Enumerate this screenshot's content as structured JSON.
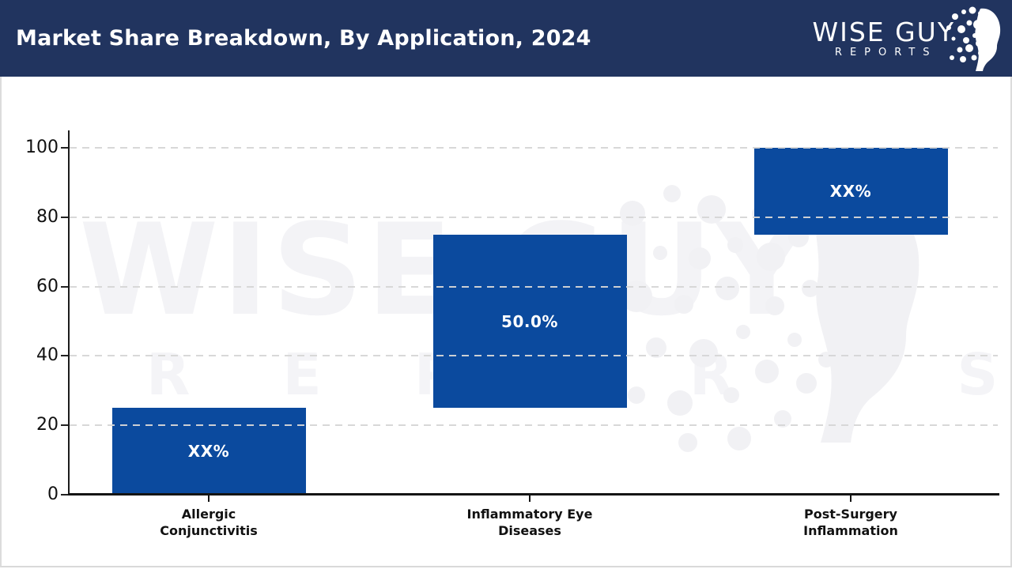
{
  "header": {
    "title": "Market Share Breakdown, By Application, 2024",
    "logo": {
      "line1": "WISE GUY",
      "line2": "REPORTS"
    }
  },
  "watermark": {
    "line1": "WISE GUY",
    "line2": "R E P O R T S"
  },
  "chart_data": {
    "type": "bar",
    "subtype": "floating-segment bars (waterfall-style market share breakdown)",
    "title": "Market Share Breakdown, By Application, 2024",
    "categories": [
      "Allergic Conjunctivitis",
      "Inflammatory Eye Diseases",
      "Post-Surgery Inflammation"
    ],
    "categories_lines": [
      [
        "Allergic",
        "Conjunctivitis"
      ],
      [
        "Inflammatory Eye",
        "Diseases"
      ],
      [
        "Post-Surgery",
        "Inflammation"
      ]
    ],
    "segments": [
      {
        "category": "Allergic Conjunctivitis",
        "from": 0,
        "to": 25,
        "label": "XX%"
      },
      {
        "category": "Inflammatory Eye Diseases",
        "from": 25,
        "to": 75,
        "label": "50.0%"
      },
      {
        "category": "Post-Surgery Inflammation",
        "from": 75,
        "to": 100,
        "label": "XX%"
      }
    ],
    "xlabel": "",
    "ylabel": "",
    "ylim": [
      0,
      100
    ],
    "yticks": [
      0,
      20,
      40,
      60,
      80,
      100
    ],
    "grid": "horizontal dashed gridlines, drawn over bars",
    "legend": "none",
    "bar_color": "#0b4a9e",
    "bar_label_color": "#ffffff"
  },
  "colors": {
    "header_bg": "#21345f",
    "bar": "#0b4a9e",
    "grid": "#d9d9d9",
    "axis": "#1a1a1a",
    "watermark": "#f3f3f6",
    "frame_border": "#d9d9d9",
    "background": "#ffffff"
  }
}
